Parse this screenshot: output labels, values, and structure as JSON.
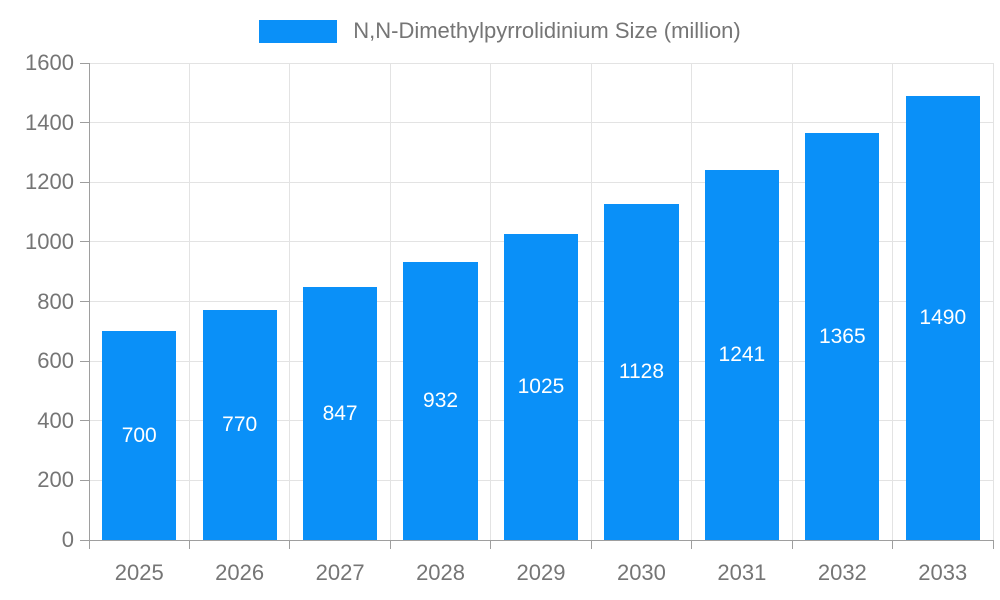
{
  "chart_data": {
    "type": "bar",
    "title": "N,N-Dimethylpyrrolidinium Size (million)",
    "categories": [
      "2025",
      "2026",
      "2027",
      "2028",
      "2029",
      "2030",
      "2031",
      "2032",
      "2033"
    ],
    "values": [
      700,
      770,
      847,
      932,
      1025,
      1128,
      1241,
      1365,
      1490
    ],
    "xlabel": "",
    "ylabel": "",
    "ylim": [
      0,
      1600
    ],
    "ytick_step": 200,
    "yticks": [
      "0",
      "200",
      "400",
      "600",
      "800",
      "1000",
      "1200",
      "1400",
      "1600"
    ],
    "grid": true,
    "legend_position": "top",
    "value_labels_inside_bars": true,
    "colors": {
      "bar": "#0a90f8",
      "bar_value_label": "#ffffff",
      "axis": "#9e9e9e",
      "gridline": "#e3e3e3",
      "tick_text": "#757575",
      "legend_text": "#757575",
      "background": "#ffffff"
    }
  }
}
